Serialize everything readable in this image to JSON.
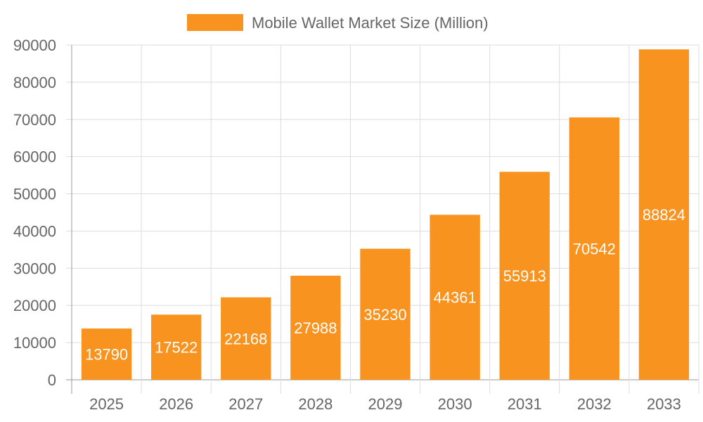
{
  "chart_data": {
    "type": "bar",
    "categories": [
      "2025",
      "2026",
      "2027",
      "2028",
      "2029",
      "2030",
      "2031",
      "2032",
      "2033"
    ],
    "series": [
      {
        "name": "Mobile Wallet Market Size (Million)",
        "values": [
          13790,
          17522,
          22168,
          27988,
          35230,
          44361,
          55913,
          70542,
          88824
        ]
      }
    ],
    "ylim": [
      0,
      90000
    ],
    "yticks": [
      "0",
      "10000",
      "20000",
      "30000",
      "40000",
      "50000",
      "60000",
      "70000",
      "80000",
      "90000"
    ],
    "legend_position": "top-center",
    "grid": true,
    "data_labels": true,
    "colors": {
      "bar": "#F7931E",
      "grid": "#dddddd",
      "axis": "#999999",
      "text": "#666666",
      "label": "#ffffff"
    }
  }
}
